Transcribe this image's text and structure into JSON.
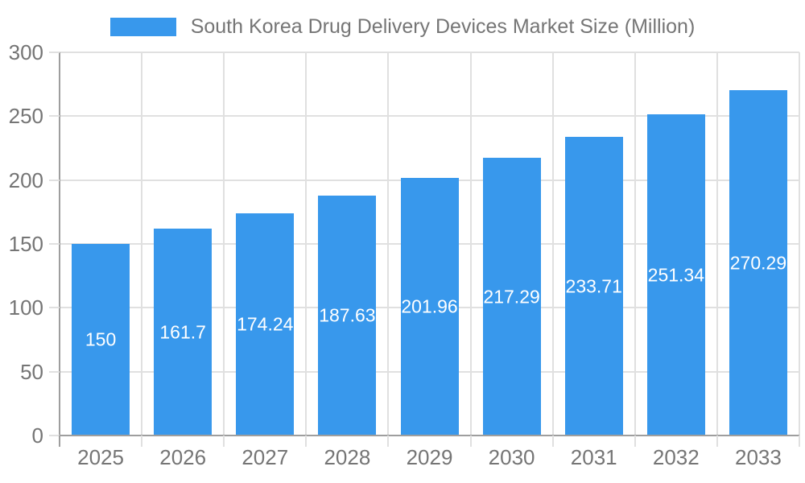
{
  "legend": {
    "label": "South Korea Drug Delivery Devices Market Size (Million)",
    "swatch_color": "#3898ec"
  },
  "chart_data": {
    "type": "bar",
    "title": "South Korea Drug Delivery Devices Market Size (Million)",
    "categories": [
      "2025",
      "2026",
      "2027",
      "2028",
      "2029",
      "2030",
      "2031",
      "2032",
      "2033"
    ],
    "values": [
      150,
      161.7,
      174.24,
      187.63,
      201.96,
      217.29,
      233.71,
      251.34,
      270.29
    ],
    "value_labels": [
      "150",
      "161.7",
      "174.24",
      "187.63",
      "201.96",
      "217.29",
      "233.71",
      "251.34",
      "270.29"
    ],
    "xlabel": "",
    "ylabel": "",
    "ylim": [
      0,
      300
    ],
    "yticks": [
      0,
      50,
      100,
      150,
      200,
      250,
      300
    ],
    "grid": true,
    "legend_position": "top-center",
    "colors": {
      "bar": "#3898ec",
      "bar_label_text": "#ffffff",
      "axis_text": "#757575",
      "grid_line": "#e0e0e0",
      "axis_line": "#9e9e9e",
      "background": "#ffffff"
    }
  }
}
